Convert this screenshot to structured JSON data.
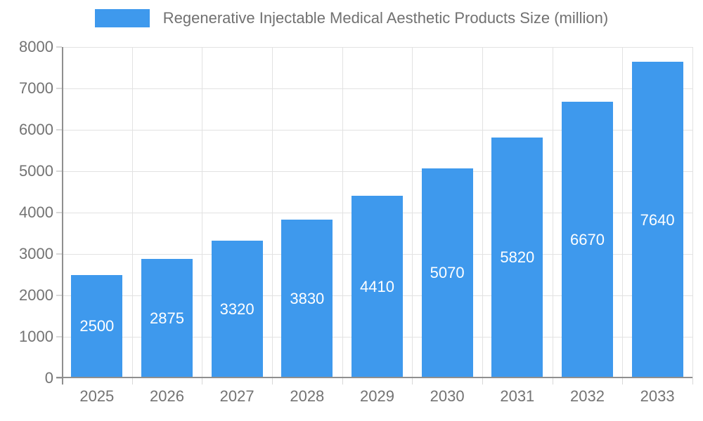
{
  "chart_data": {
    "type": "bar",
    "title": "Regenerative Injectable Medical Aesthetic Products Size (million)",
    "categories": [
      "2025",
      "2026",
      "2027",
      "2028",
      "2029",
      "2030",
      "2031",
      "2032",
      "2033"
    ],
    "values": [
      2500,
      2875,
      3320,
      3830,
      4410,
      5070,
      5820,
      6670,
      7640
    ],
    "value_labels": [
      "2500",
      "2875",
      "3320",
      "3830",
      "4410",
      "5070",
      "5820",
      "6670",
      "7640"
    ],
    "yticks": [
      0,
      1000,
      2000,
      3000,
      4000,
      5000,
      6000,
      7000,
      8000
    ],
    "ytick_labels": [
      "0",
      "1000",
      "2000",
      "3000",
      "4000",
      "5000",
      "6000",
      "7000",
      "8000"
    ],
    "ylim": [
      0,
      8000
    ],
    "xlabel": "",
    "ylabel": "",
    "grid": "both",
    "legend_position": "top-center",
    "colors": {
      "bar": "#3E99ED",
      "grid": "#E2E2E2",
      "axis": "#8F8F8F",
      "tick": "#D8D8D8",
      "axis_text": "#737373",
      "legend_text": "#717171",
      "value_label": "#FFFFFF",
      "background": "#FFFFFF"
    }
  }
}
